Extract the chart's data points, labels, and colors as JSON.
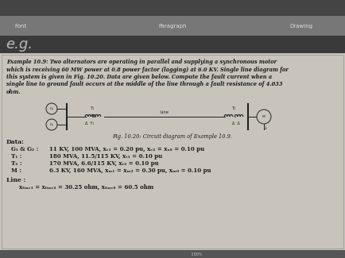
{
  "bg_top_color": "#555555",
  "bg_toolbar_color": "#888888",
  "bg_eg_color": "#444444",
  "bg_content_color": "#c8c4bc",
  "toolbar_font": [
    "Font",
    "Paragraph",
    "Drawing"
  ],
  "eg_text": "e.g.",
  "title_lines": [
    "Example 10.9: Two alternators are operating in parallel and supplying a synchronous motor",
    "which is receiving 60 MW power at 0.8 power factor (lagging) at 6.0 KV. Single line diagram for",
    "this system is given in Fig. 10.20. Data are given below. Compute the fault current when a",
    "single line to ground fault occurs at the middle of the line through a fault resistance of 4.033",
    "ohm."
  ],
  "fig_caption": "Fig. 10.20: Circuit diagram of Example 10.9.",
  "data_label": "Data:",
  "data_rows": [
    [
      "G₁ & G₂ :",
      "11 KV, 100 MVA, xₑ₁ = 0.20 pu, xₑ₂ = xₐ₀ = 0.10 pu"
    ],
    [
      "T₁ :",
      "180 MVA, 11.5/115 KV, xₜ₁ = 0.10 pu"
    ],
    [
      "T₂ :",
      "170 MVA, 6.6/115 KV, xₜ₂ = 0.10 pu"
    ],
    [
      "M :",
      "6.3 KV, 160 MVA, xₘ₁ = xₘ₂ = 0.30 pu, xₘ₀ = 0.10 pu"
    ]
  ],
  "line_label": "Line :",
  "line_text": "xₗᵢₙₑ₁ = xₗᵢₙₑ₂ = 30.25 ohm, xₗᵢₙₑ₀ = 60.5 ohm",
  "bottom_bar_color": "#555555",
  "text_color": "#1a1a1a",
  "circ_color": "#c8c4bc",
  "circ_edge": "#222222"
}
